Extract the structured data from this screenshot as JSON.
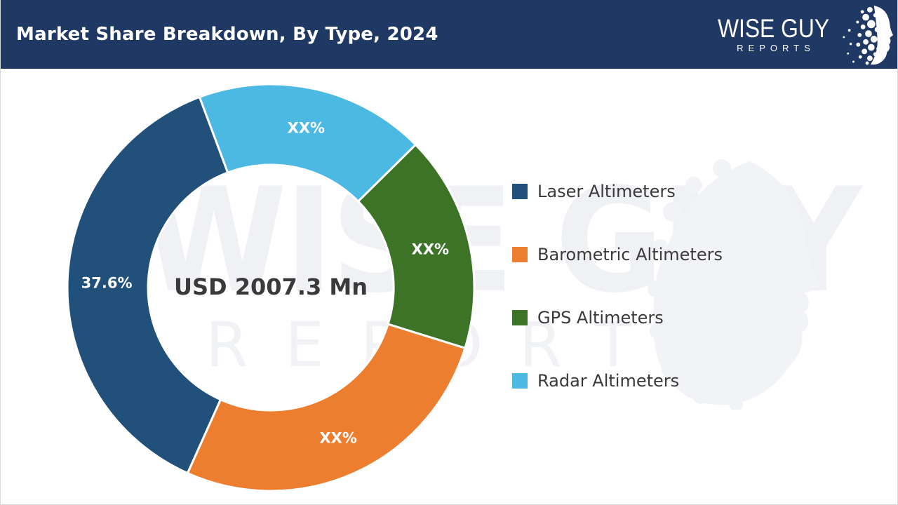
{
  "header": {
    "title": "Market Share Breakdown, By Type, 2024",
    "bg_color": "#1f3864",
    "logo": {
      "line1": "WISE GUY",
      "line2": "REPORTS"
    }
  },
  "watermark": {
    "line1": "WISE GUY",
    "line2": "REPORTS"
  },
  "chart_data": {
    "type": "donut",
    "title": "Market Share Breakdown, By Type, 2024",
    "center_label": "USD 2007.3 Mn",
    "start_angle_deg": 110.5,
    "direction": "counterclockwise",
    "legend_position": "right",
    "segments": [
      {
        "label": "Laser Altimeters",
        "value_pct": 37.6,
        "display_label": "37.6%",
        "color": "#21507a"
      },
      {
        "label": "Barometric Altimeters",
        "value_pct": 26.9,
        "display_label": "XX%",
        "color": "#ed7d2f"
      },
      {
        "label": "GPS Altimeters",
        "value_pct": 17.2,
        "display_label": "XX%",
        "color": "#3d7327"
      },
      {
        "label": "Radar Altimeters",
        "value_pct": 18.3,
        "display_label": "XX%",
        "color": "#4cb9e3"
      }
    ]
  }
}
